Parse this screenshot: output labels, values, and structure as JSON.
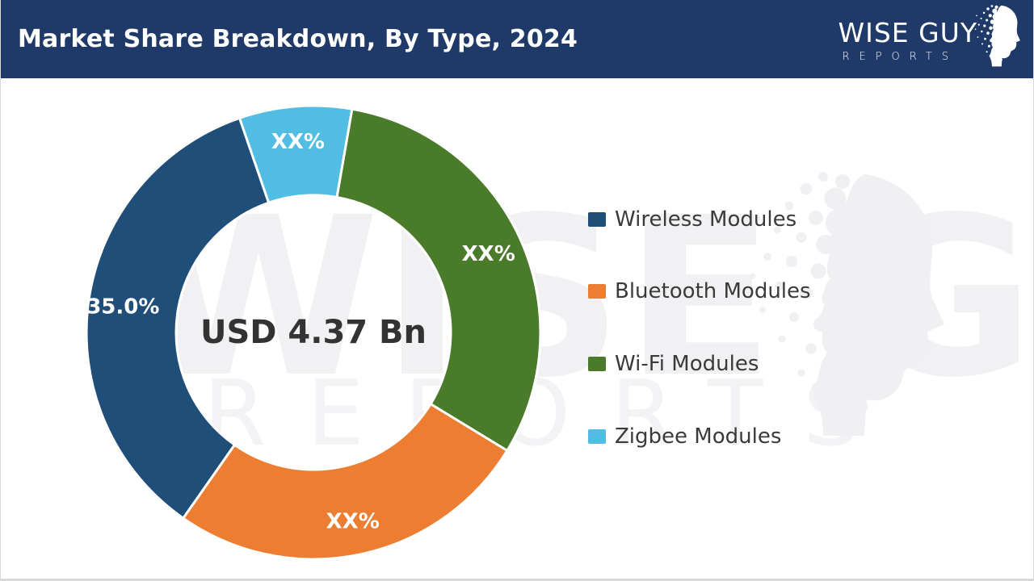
{
  "header": {
    "title": "Market Share Breakdown, By Type, 2024",
    "logo": {
      "wordmark": "WISE GUY",
      "subtext": "REPORTS"
    }
  },
  "watermark": {
    "wordmark": "WISE GUY",
    "subtext": "REPORTS"
  },
  "icons": {
    "logo_face": "dotted-face-profile",
    "watermark_face": "dotted-face-profile"
  },
  "colors": {
    "header_bg": "#1f3a68",
    "center_text": "#333333",
    "legend_text": "#3a3a3a",
    "slice_label_text": "#ffffff",
    "separator": "#ffffff",
    "watermark": "#f1f1f4",
    "border": "#d9d9d9"
  },
  "chart_data": {
    "type": "pie",
    "subtype": "donut",
    "title": "Market Share Breakdown, By Type, 2024",
    "center_label": "USD 4.37 Bn",
    "legend_position": "right",
    "direction": "counterclockwise",
    "start_angle_deg": 109,
    "grid": false,
    "segments": [
      {
        "label": "Wireless Modules",
        "color": "#1f4e79",
        "shown_value": "35.0%",
        "arc_pct": 35.0
      },
      {
        "label": "Bluetooth Modules",
        "color": "#ed7d31",
        "shown_value": "XX%",
        "arc_pct": 26.0
      },
      {
        "label": "Wi-Fi Modules",
        "color": "#497b2b",
        "shown_value": "XX%",
        "arc_pct": 31.0
      },
      {
        "label": "Zigbee Modules",
        "color": "#51bde3",
        "shown_value": "XX%",
        "arc_pct": 8.0
      }
    ]
  }
}
